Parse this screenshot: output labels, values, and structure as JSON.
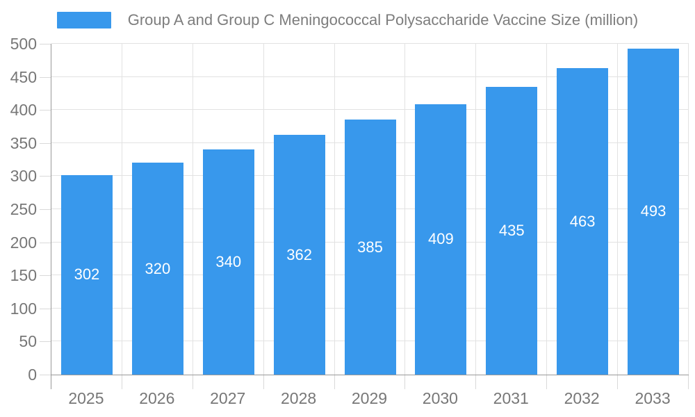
{
  "chart_data": {
    "type": "bar",
    "title": "Group A and Group C Meningococcal Polysaccharide Vaccine Size (million)",
    "categories": [
      "2025",
      "2026",
      "2027",
      "2028",
      "2029",
      "2030",
      "2031",
      "2032",
      "2033"
    ],
    "values": [
      302,
      320,
      340,
      362,
      385,
      409,
      435,
      463,
      493
    ],
    "xlabel": "",
    "ylabel": "",
    "ylim": [
      0,
      500
    ],
    "ytick_step": 50,
    "grid": true,
    "legend_position": "top",
    "bar_color": "#3898ec",
    "value_label_color": "#ffffff",
    "axis_text_color": "#777777",
    "title_color": "#7d7d7d",
    "gridline_color": "#e2e2e2",
    "axis_line_color": "#999999"
  }
}
